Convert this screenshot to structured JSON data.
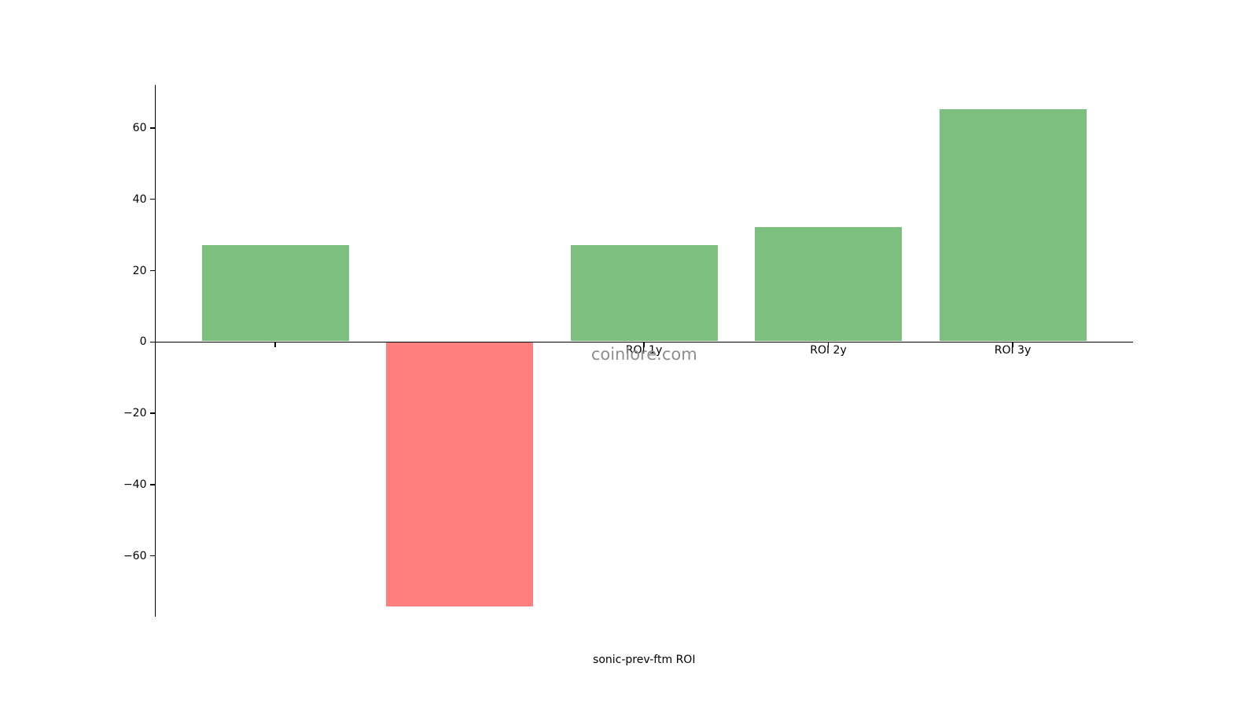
{
  "page": {
    "background_color": "#ffffff"
  },
  "chart_data": {
    "type": "bar",
    "title": "sonic-prev-ftm ROI",
    "watermark": "coinlore.com",
    "categories": [
      "",
      "",
      "ROI 1y",
      "ROI 2y",
      "ROI 3y"
    ],
    "values": [
      27,
      -74,
      27,
      32,
      65
    ],
    "bar_colors": [
      "#7dbf7f",
      "#ff7f7f",
      "#7dbf7f",
      "#7dbf7f",
      "#7dbf7f"
    ],
    "positive_color": "#7dbf7f",
    "negative_color": "#ff7f7f",
    "yticks": [
      60,
      40,
      20,
      0,
      -20,
      -40,
      -60
    ],
    "ylim": [
      -77,
      72
    ],
    "xlabel": "",
    "ylabel": "",
    "grid": false,
    "legend": null,
    "axis_color": "#000000",
    "tick_text_color": "#000000",
    "watermark_color": "#8e8e8e"
  }
}
